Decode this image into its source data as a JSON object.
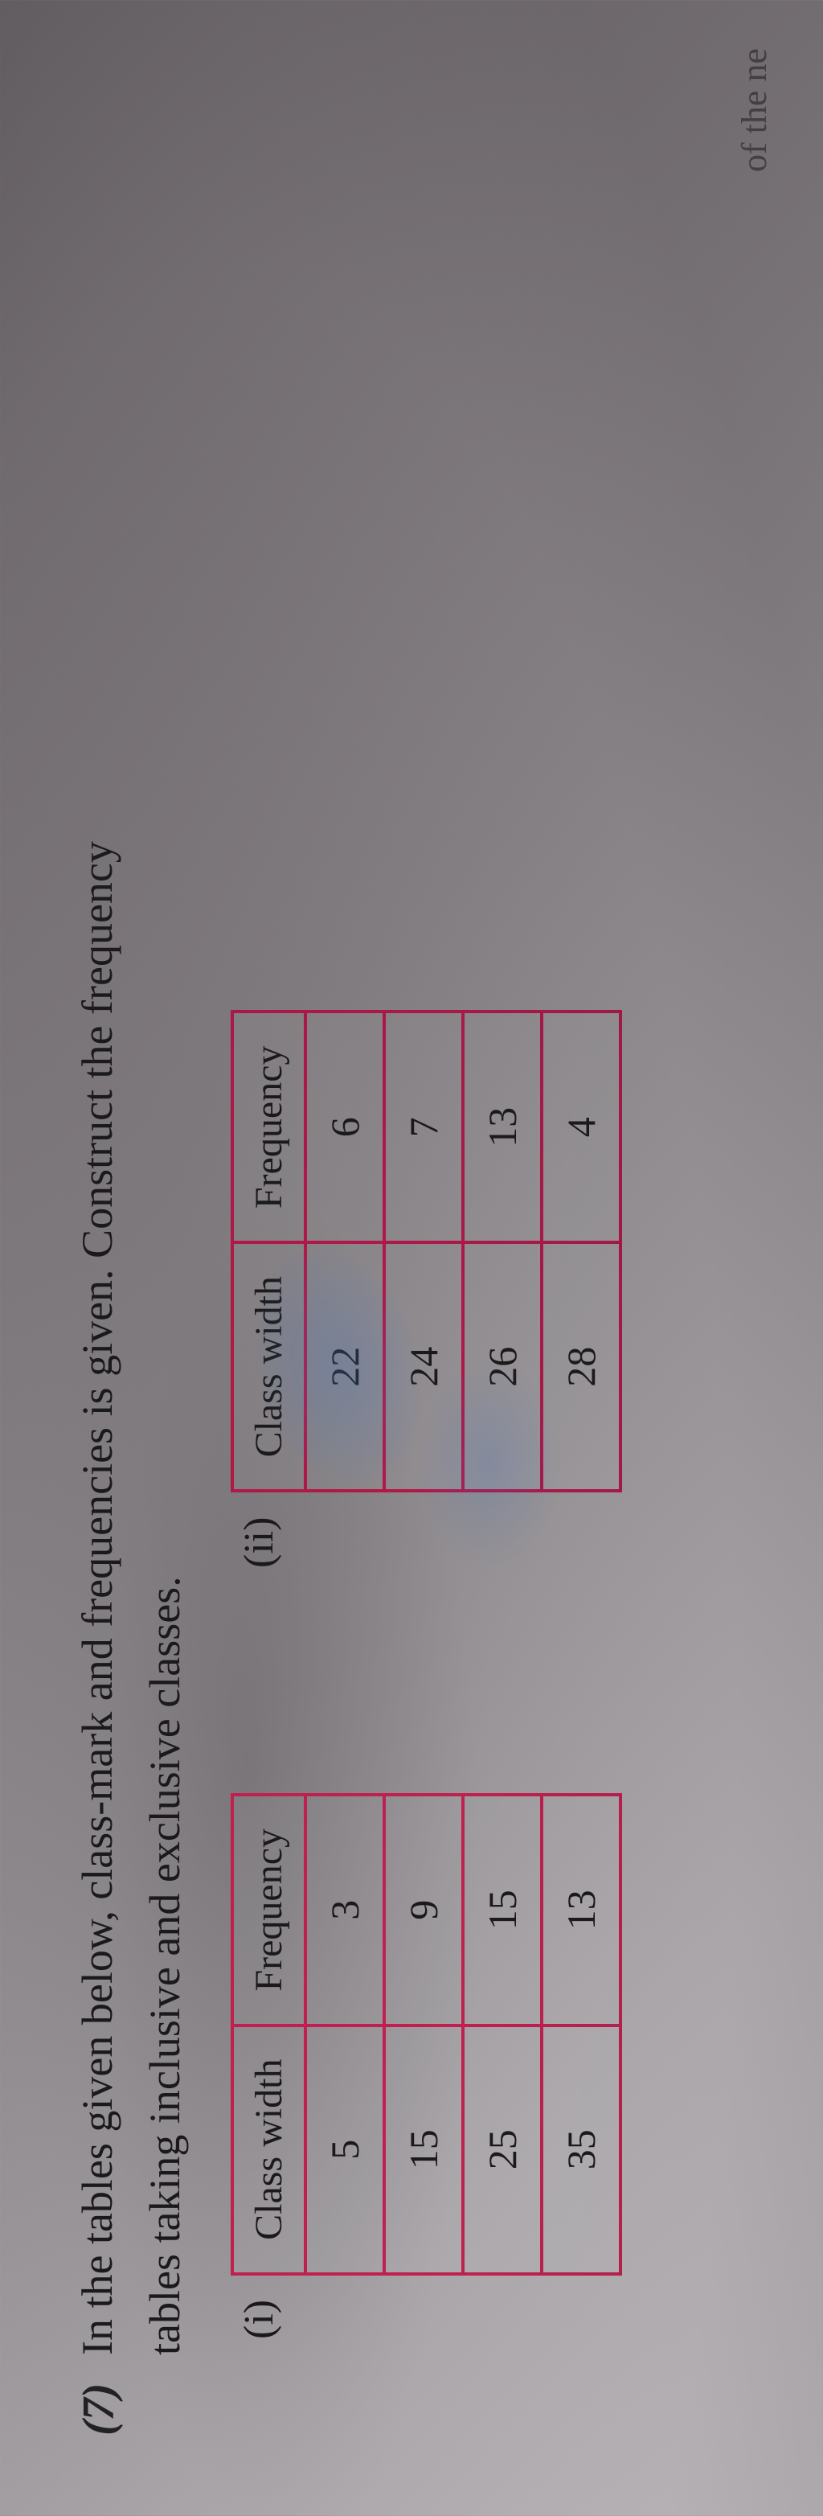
{
  "question": {
    "marker": "(7)",
    "line1": "In the tables given below, class-mark and frequencies is given. Construct the frequency",
    "line2": "tables taking inclusive and exclusive classes."
  },
  "tables": [
    {
      "label": "(i)",
      "header_col1": "Class width",
      "header_col2": "Frequency",
      "rows": [
        {
          "c1": "5",
          "c2": "3"
        },
        {
          "c1": "15",
          "c2": "9"
        },
        {
          "c1": "25",
          "c2": "15"
        },
        {
          "c1": "35",
          "c2": "13"
        }
      ],
      "border_color": "#c02050"
    },
    {
      "label": "(ii)",
      "header_col1": "Class width",
      "header_col2": "Frequency",
      "rows": [
        {
          "c1": "22",
          "c2": "6"
        },
        {
          "c1": "24",
          "c2": "7"
        },
        {
          "c1": "26",
          "c2": "13"
        },
        {
          "c1": "28",
          "c2": "4"
        }
      ],
      "border_color": "#b01848"
    }
  ],
  "edge_fragment": "of the ne"
}
